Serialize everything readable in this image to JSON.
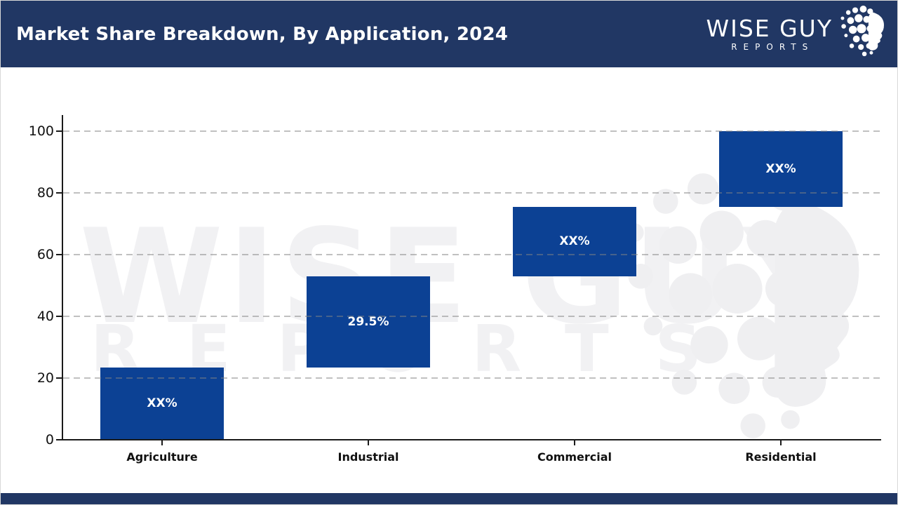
{
  "header": {
    "title": "Market Share Breakdown, By Application, 2024",
    "bg_color": "#213764",
    "logo": {
      "line1": "WISE GUY",
      "line2": "REPORTS"
    }
  },
  "watermark": {
    "line1": "WISE GUY",
    "line2": "REPORTS"
  },
  "chart_data": {
    "type": "bar",
    "subtype": "floating-waterfall",
    "title": "Market Share Breakdown, By Application, 2024",
    "categories": [
      "Agriculture",
      "Industrial",
      "Commercial",
      "Residential"
    ],
    "bar_ranges": [
      [
        0,
        23.5
      ],
      [
        23.5,
        53
      ],
      [
        53,
        75.5
      ],
      [
        75.5,
        100
      ]
    ],
    "values": [
      23.5,
      29.5,
      22.5,
      24.5
    ],
    "bar_labels": [
      "XX%",
      "29.5%",
      "XX%",
      "XX%"
    ],
    "xlabel": "",
    "ylabel": "",
    "ylim": [
      0,
      105
    ],
    "yticks": [
      0,
      20,
      40,
      60,
      80,
      100
    ],
    "grid": "horizontal-dashed",
    "legend": "none",
    "bar_color": "#0c4194",
    "bar_label_color": "#ffffff"
  }
}
